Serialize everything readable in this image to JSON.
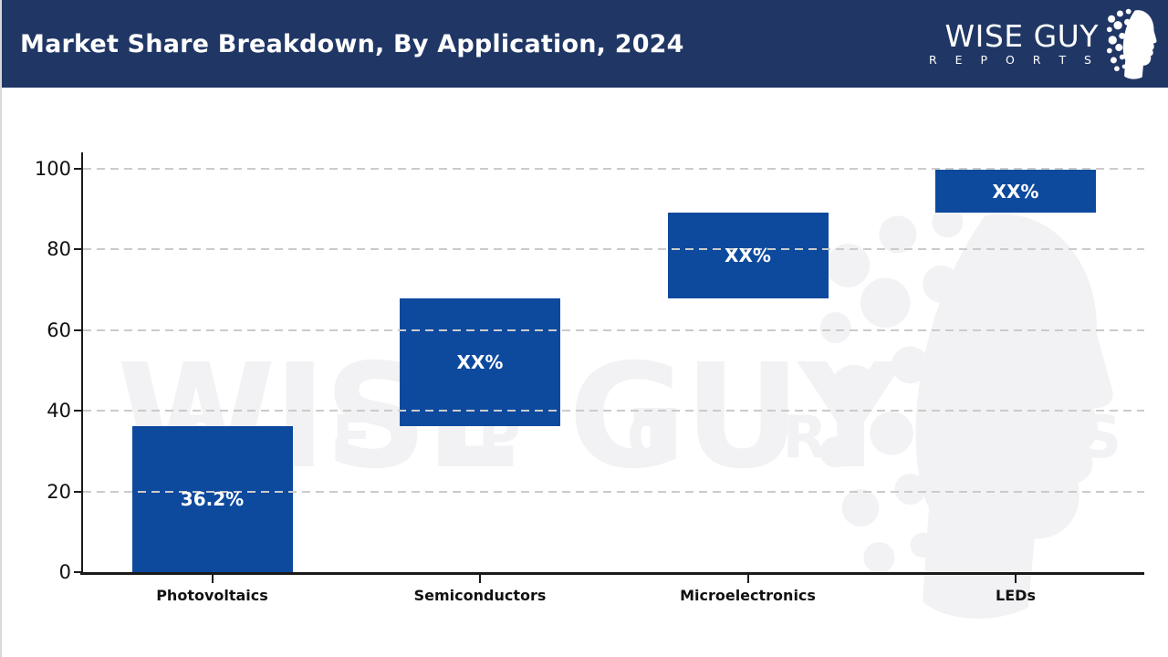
{
  "header": {
    "title": "Market Share Breakdown, By Application, 2024",
    "logo": {
      "line1": "WISE GUY",
      "line2": "R E P O R T S",
      "icon": "dotted-head-profile"
    },
    "bg_color": "#203765"
  },
  "watermark": {
    "line1": "WISE GUY",
    "line2": "R E P O R T S",
    "icon": "dotted-head-profile"
  },
  "chart_data": {
    "type": "bar",
    "subtype": "floating-segment-columns (stacked market-share waterfall)",
    "title": "Market Share Breakdown, By Application, 2024",
    "categories": [
      "Photovoltaics",
      "Semiconductors",
      "Microelectronics",
      "LEDs"
    ],
    "segments": [
      {
        "category": "Photovoltaics",
        "start": 0,
        "end": 36.2,
        "value_label": "36.2%"
      },
      {
        "category": "Semiconductors",
        "start": 36.2,
        "end": 67.7,
        "value_label": "XX%"
      },
      {
        "category": "Microelectronics",
        "start": 67.7,
        "end": 89.0,
        "value_label": "XX%"
      },
      {
        "category": "LEDs",
        "start": 89.0,
        "end": 99.6,
        "value_label": "XX%"
      }
    ],
    "y_ticks": [
      0,
      20,
      40,
      60,
      80,
      100
    ],
    "ylim": [
      0,
      105
    ],
    "xlabel": "",
    "ylabel": "",
    "grid": "horizontal dashed, drawn over bars",
    "legend": "none",
    "bar_color": "#0d4a9e",
    "bar_label_color": "#ffffff",
    "gridline_color": "#cbcbcb",
    "axis_color": "#1a1a1a"
  }
}
